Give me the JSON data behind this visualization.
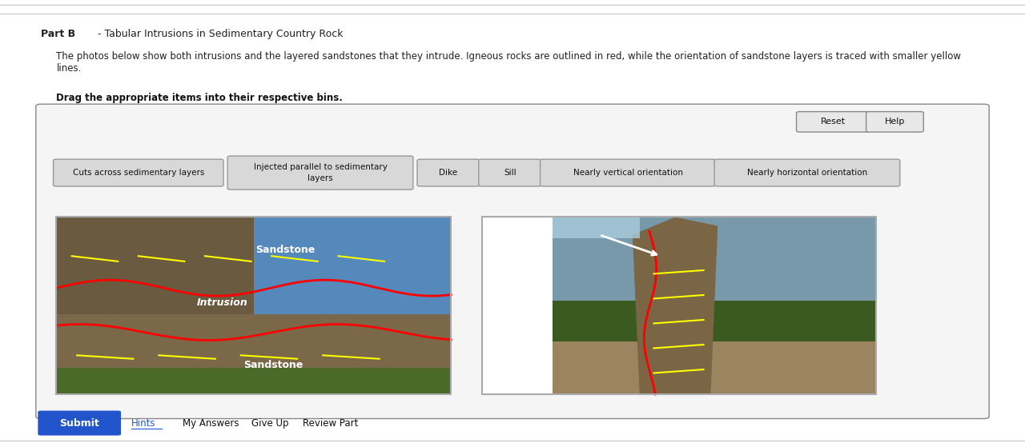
{
  "title_bold": "Part B",
  "title_rest": " - Tabular Intrusions in Sedimentary Country Rock",
  "description": "The photos below show both intrusions and the layered sandstones that they intrude. Igneous rocks are outlined in red, while the orientation of sandstone layers is traced with smaller yellow\nlines.",
  "drag_instruction": "Drag the appropriate items into their respective bins.",
  "reset_btn": "Reset",
  "help_btn": "Help",
  "draggable_items": [
    "Cuts across sedimentary layers",
    "Injected parallel to sedimentary\nlayers",
    "Dike",
    "Sill",
    "Nearly vertical orientation",
    "Nearly horizontal orientation"
  ],
  "photo1_labels": [
    "Sandstone",
    "Intrusion",
    "Sandstone"
  ],
  "submit_btn": "Submit",
  "bottom_links": [
    "Hints",
    "My Answers",
    "Give Up",
    "Review Part"
  ],
  "bg_color": "#ffffff",
  "panel_bg": "#f8f8f8",
  "border_color": "#aaaaaa",
  "btn_bg": "#e8e8e8",
  "submit_color": "#2255cc"
}
